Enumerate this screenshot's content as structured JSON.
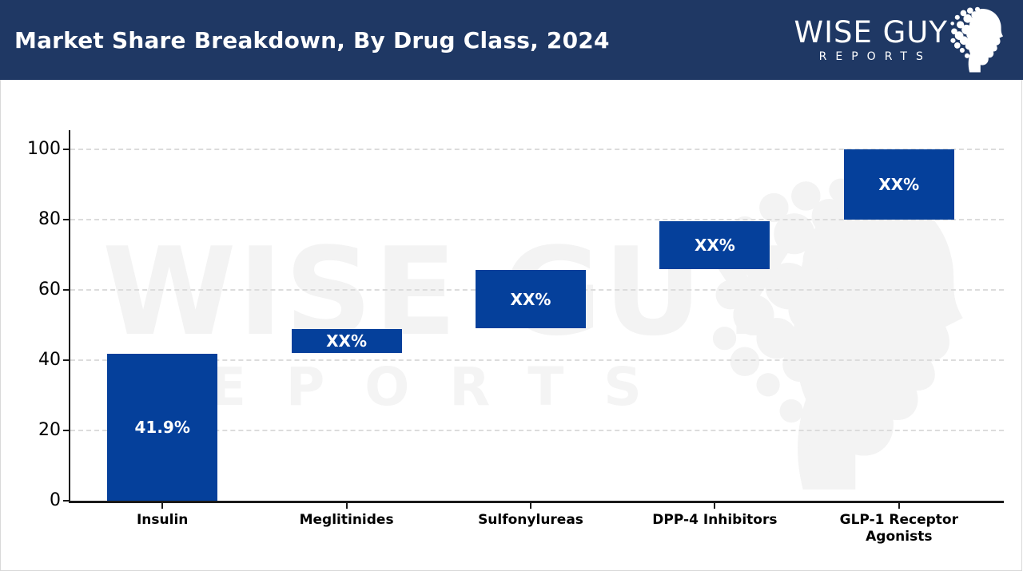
{
  "header": {
    "title": "Market Share Breakdown, By Drug Class, 2024",
    "logo": {
      "line1": "WISE GUY",
      "line2": "REPORTS"
    }
  },
  "watermark": {
    "line1": "WISE GUY",
    "line2": "REPORTS"
  },
  "colors": {
    "header_bg": "#1f3864",
    "bar": "#05409b",
    "gridline": "#dcdcdc",
    "axis": "#1a1a1a",
    "watermark": "#f3f3f3",
    "title_text": "#ffffff",
    "bar_label_text": "#ffffff"
  },
  "chart_data": {
    "type": "bar",
    "subtype": "waterfall",
    "title": "Market Share Breakdown, By Drug Class, 2024",
    "xlabel": "",
    "ylabel": "",
    "ylim": [
      0,
      105
    ],
    "yticks": [
      0,
      20,
      40,
      60,
      80,
      100
    ],
    "grid": "horizontal-dashed",
    "legend": "none",
    "categories": [
      "Insulin",
      "Meglitinides",
      "Sulfonylureas",
      "DPP-4 Inhibitors",
      "GLP-1 Receptor Agonists"
    ],
    "segments": [
      {
        "category": "Insulin",
        "start": 0,
        "end": 41.9,
        "label": "41.9%"
      },
      {
        "category": "Meglitinides",
        "start": 42,
        "end": 48.8,
        "label": "XX%"
      },
      {
        "category": "Sulfonylureas",
        "start": 49,
        "end": 65.6,
        "label": "XX%"
      },
      {
        "category": "DPP-4 Inhibitors",
        "start": 66,
        "end": 79.5,
        "label": "XX%"
      },
      {
        "category": "GLP-1 Receptor Agonists",
        "start": 80,
        "end": 100,
        "label": "XX%"
      }
    ]
  }
}
